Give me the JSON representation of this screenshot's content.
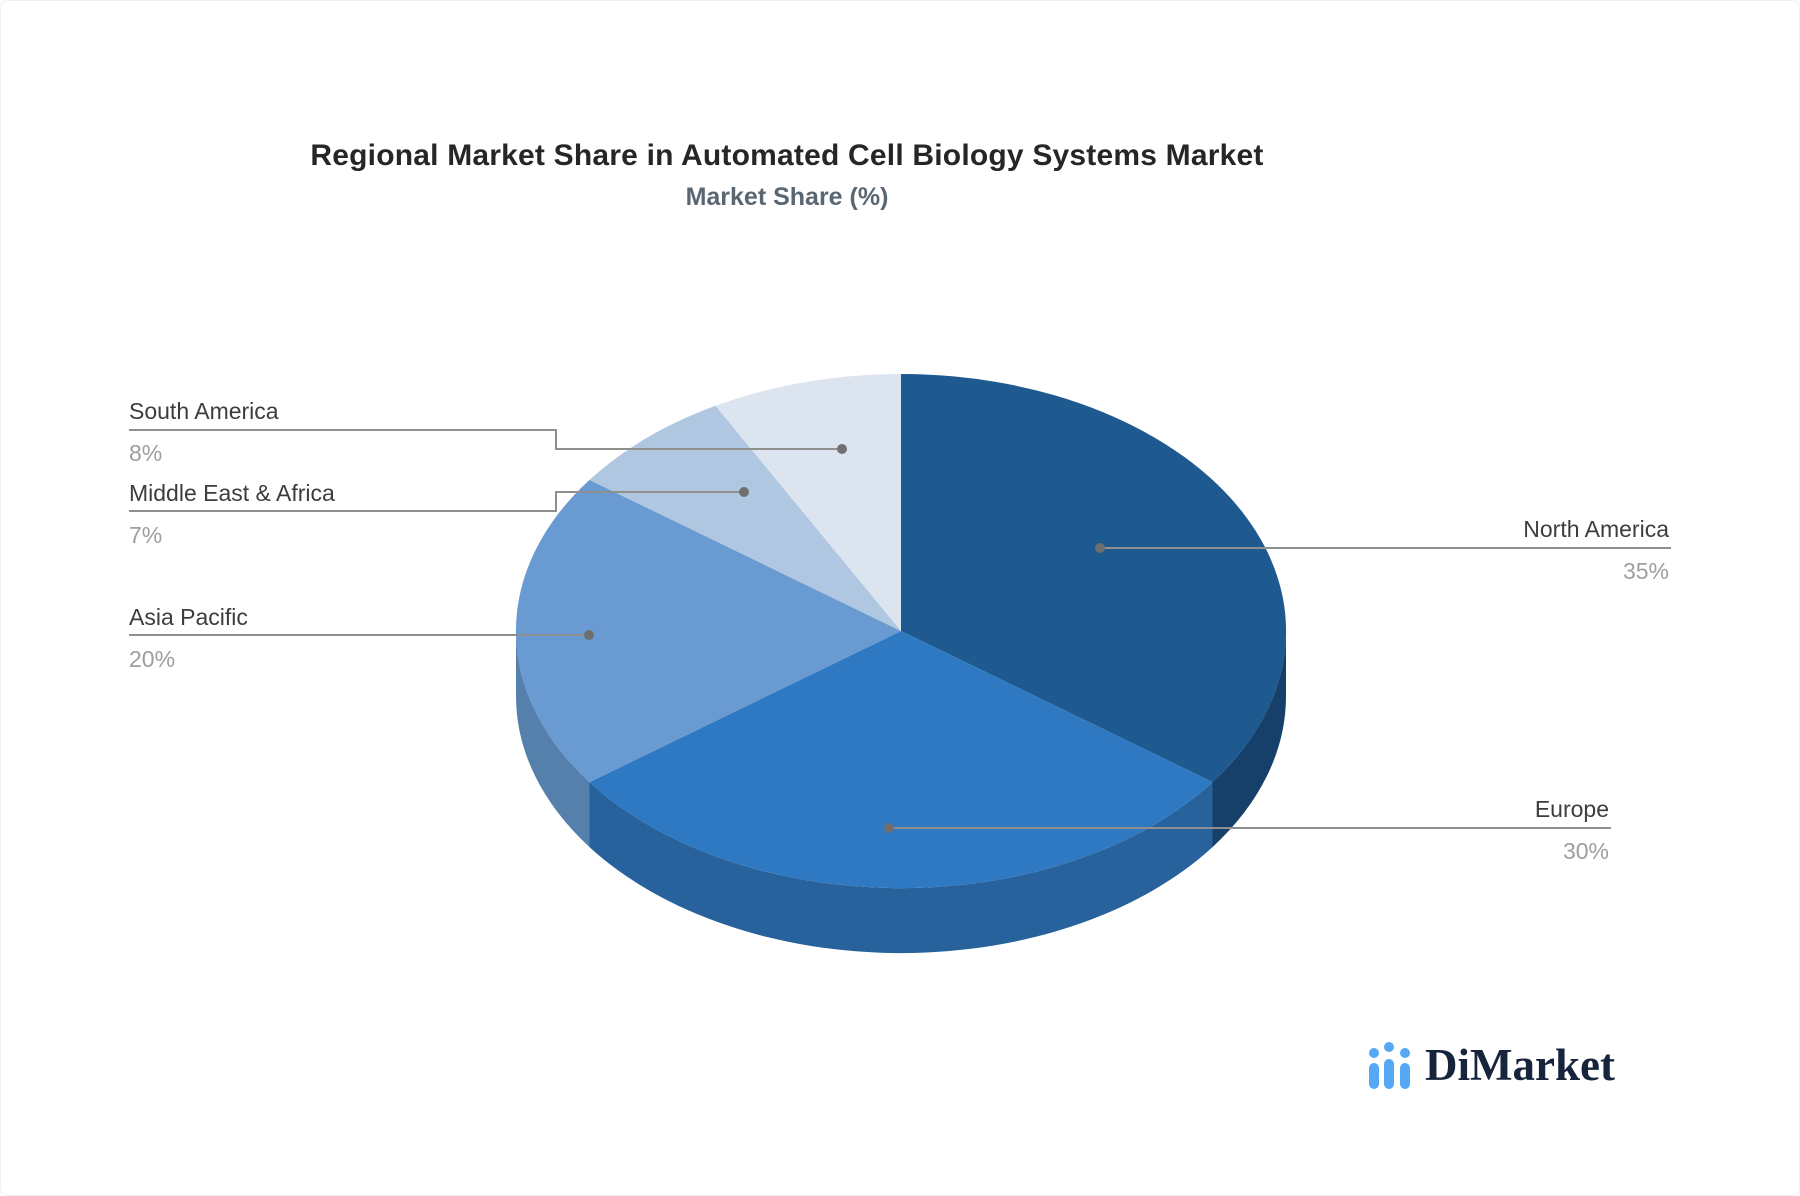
{
  "header": {
    "title": "Regional Market Share in Automated Cell Biology Systems Market",
    "subtitle": "Market Share (%)"
  },
  "chart_data": {
    "type": "pie",
    "style": "3d-pie",
    "title": "Regional Market Share in Automated Cell Biology Systems Market",
    "subtitle": "Market Share (%)",
    "unit": "%",
    "start_angle": "12 o'clock, clockwise",
    "legend_position": "leader-line labels (left and right of pie)",
    "slices": [
      {
        "label": "North America",
        "value": 35,
        "value_label": "35%",
        "color": "#1e5a90",
        "side_color": "#163f69"
      },
      {
        "label": "Europe",
        "value": 30,
        "value_label": "30%",
        "color": "#2e79c2",
        "side_color": "#27629c"
      },
      {
        "label": "Asia Pacific",
        "value": 20,
        "value_label": "20%",
        "color": "#699bd2",
        "side_color": "#5480ab"
      },
      {
        "label": "Middle East & Africa",
        "value": 7,
        "value_label": "7%",
        "color": "#b0c7e1",
        "side_color": "#8fa9c4"
      },
      {
        "label": "South America",
        "value": 8,
        "value_label": "8%",
        "color": "#dce4ef",
        "side_color": "#b6c2d2"
      }
    ],
    "leader_line_color": "#8f8f8f",
    "leader_dot_color": "#6f6f6f",
    "label_name_color": "#3d3d3d",
    "label_value_color": "#9e9e9e"
  },
  "brand": {
    "name": "DiMarket",
    "icon": "bar-chart-logo",
    "icon_color": "#55a8f4",
    "text_color": "#16243c"
  }
}
